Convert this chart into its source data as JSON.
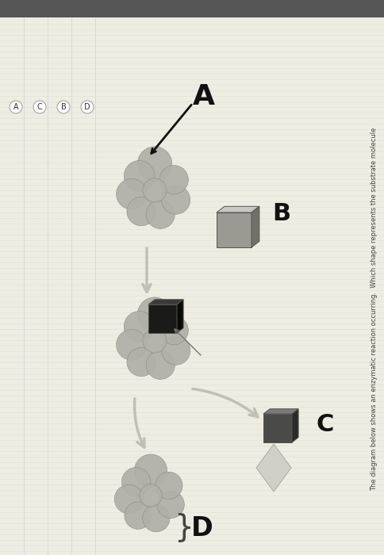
{
  "title": "The diagram below shows an enzymatic reaction occurring.  Which shape represents the substrate molecule",
  "answer_options": [
    "D",
    "B",
    "C",
    "A"
  ],
  "background_color": "#ededE3",
  "fig_width": 4.84,
  "fig_height": 7.0,
  "dpi": 100,
  "label_A": "A",
  "label_B": "B",
  "label_C": "C",
  "label_D": "D",
  "enzyme_color": "#b0b0a8",
  "enzyme_edge": "#888880",
  "cube_light": "#a8a8a0",
  "cube_mid": "#888880",
  "cube_dark": "#606058",
  "cube_dark2": "#202020",
  "arrow_color": "#c0c0b8",
  "stripe_color": "#e0e0d4",
  "title_color": "#444444",
  "label_color": "#111111",
  "answer_box_color": "#ffffff",
  "answer_box_edge": "#999999"
}
